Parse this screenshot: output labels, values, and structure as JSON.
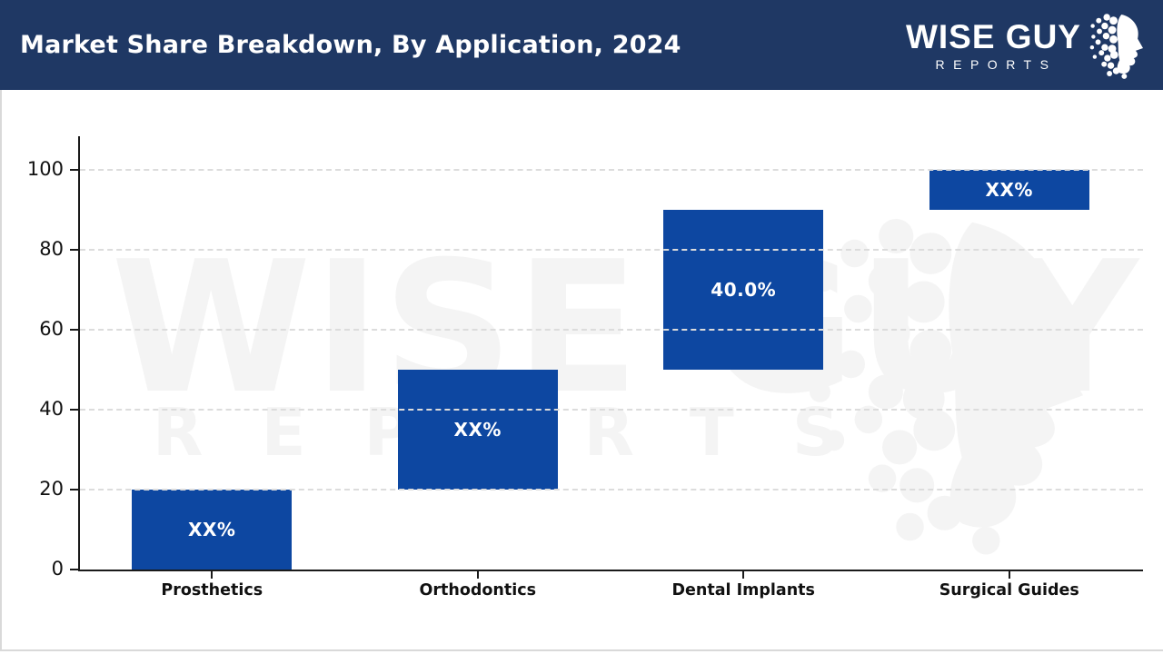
{
  "header": {
    "title": "Market Share Breakdown, By Application, 2024",
    "logo_line1": "WISE GUY",
    "logo_line2": "REPORTS"
  },
  "watermark": {
    "line1": "WISE GUY",
    "line2": "REPORTS"
  },
  "colors": {
    "header_bg": "#1f3864",
    "bar": "#0d47a1",
    "grid": "#dcdcdc",
    "axis": "#1a1a1a",
    "watermark": "#f4f4f4",
    "bar_label": "#ffffff"
  },
  "chart_data": {
    "type": "bar",
    "subtype": "floating-range (waterfall style)",
    "title": "Market Share Breakdown, By Application, 2024",
    "categories": [
      "Prosthetics",
      "Orthodontics",
      "Dental Implants",
      "Surgical Guides"
    ],
    "bar_ranges": [
      [
        0,
        20
      ],
      [
        20,
        50
      ],
      [
        50,
        90
      ],
      [
        90,
        100
      ]
    ],
    "bar_values": [
      20,
      30,
      40,
      10
    ],
    "bar_labels": [
      "XX%",
      "XX%",
      "40.0%",
      "XX%"
    ],
    "yticks": [
      0,
      20,
      40,
      60,
      80,
      100
    ],
    "ylim": [
      0,
      108
    ],
    "xlabel": "",
    "ylabel": "",
    "grid": "horizontal dashed, drawn above bars",
    "legend": "none"
  }
}
